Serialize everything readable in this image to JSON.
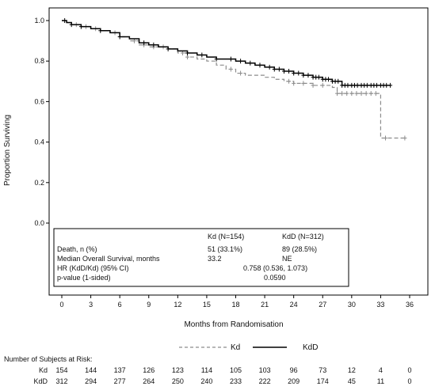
{
  "chart_data": {
    "type": "line",
    "y_axis_label": "Proportion Surviving",
    "x_axis_label": "Months from Randomisation",
    "xlim": [
      -1,
      37
    ],
    "ylim": [
      -0.38,
      1.05
    ],
    "x_ticks": [
      0,
      3,
      6,
      9,
      12,
      15,
      18,
      21,
      24,
      27,
      30,
      33,
      36
    ],
    "y_ticks": [
      0.0,
      0.2,
      0.4,
      0.6,
      0.8,
      1.0
    ],
    "y_tick_labels": [
      "0.0",
      "0.2",
      "0.4",
      "0.6",
      "0.8",
      "1.0"
    ],
    "grid": false,
    "series": [
      {
        "name": "Kd",
        "style": "dashed",
        "color": "#8c8c8c",
        "points": [
          [
            0,
            1.0
          ],
          [
            0.5,
            0.99
          ],
          [
            1,
            0.98
          ],
          [
            2,
            0.97
          ],
          [
            3,
            0.96
          ],
          [
            4,
            0.95
          ],
          [
            5,
            0.94
          ],
          [
            6,
            0.92
          ],
          [
            7,
            0.9
          ],
          [
            8,
            0.88
          ],
          [
            9,
            0.87
          ],
          [
            10,
            0.87
          ],
          [
            11,
            0.86
          ],
          [
            12,
            0.84
          ],
          [
            13,
            0.82
          ],
          [
            14,
            0.81
          ],
          [
            15,
            0.8
          ],
          [
            16,
            0.78
          ],
          [
            17,
            0.76
          ],
          [
            18,
            0.74
          ],
          [
            19,
            0.73
          ],
          [
            20,
            0.73
          ],
          [
            21,
            0.72
          ],
          [
            22,
            0.71
          ],
          [
            23,
            0.7
          ],
          [
            24,
            0.69
          ],
          [
            25,
            0.69
          ],
          [
            26,
            0.68
          ],
          [
            27,
            0.68
          ],
          [
            28,
            0.67
          ],
          [
            28.5,
            0.64
          ],
          [
            29,
            0.64
          ],
          [
            30,
            0.64
          ],
          [
            31,
            0.64
          ],
          [
            32,
            0.64
          ],
          [
            33,
            0.64
          ],
          [
            33,
            0.42
          ],
          [
            35.5,
            0.42
          ]
        ],
        "censor_x": [
          1.5,
          2.5,
          3.5,
          5.5,
          7.5,
          8.5,
          9.5,
          10.5,
          12.5,
          13,
          17.5,
          18.5,
          23.5,
          24,
          25,
          26,
          27,
          28.5,
          29,
          29.5,
          30,
          30.5,
          31,
          31.5,
          32,
          32.5,
          33.5,
          35.5
        ]
      },
      {
        "name": "KdD",
        "style": "solid",
        "color": "#000000",
        "points": [
          [
            0,
            1.0
          ],
          [
            0.5,
            0.99
          ],
          [
            1,
            0.98
          ],
          [
            2,
            0.97
          ],
          [
            3,
            0.96
          ],
          [
            4,
            0.95
          ],
          [
            5,
            0.94
          ],
          [
            6,
            0.92
          ],
          [
            7,
            0.91
          ],
          [
            8,
            0.89
          ],
          [
            9,
            0.88
          ],
          [
            10,
            0.87
          ],
          [
            11,
            0.86
          ],
          [
            12,
            0.85
          ],
          [
            13,
            0.84
          ],
          [
            14,
            0.83
          ],
          [
            15,
            0.82
          ],
          [
            16,
            0.81
          ],
          [
            17,
            0.81
          ],
          [
            18,
            0.8
          ],
          [
            19,
            0.79
          ],
          [
            20,
            0.78
          ],
          [
            21,
            0.77
          ],
          [
            22,
            0.76
          ],
          [
            23,
            0.75
          ],
          [
            24,
            0.74
          ],
          [
            25,
            0.73
          ],
          [
            26,
            0.72
          ],
          [
            27,
            0.71
          ],
          [
            28,
            0.7
          ],
          [
            29,
            0.68
          ],
          [
            30,
            0.68
          ],
          [
            31,
            0.68
          ],
          [
            32,
            0.68
          ],
          [
            33,
            0.68
          ],
          [
            34,
            0.68
          ]
        ],
        "censor_x": [
          0.3,
          1,
          2,
          4,
          6,
          8.5,
          9.5,
          11,
          13,
          14.5,
          16,
          17.5,
          18.5,
          19.5,
          20.5,
          21.5,
          22,
          22.5,
          23,
          23.5,
          24,
          24.5,
          25,
          25.5,
          26,
          26.3,
          26.6,
          27,
          27.3,
          27.6,
          28,
          28.3,
          28.6,
          29,
          29.3,
          29.6,
          30,
          30.3,
          30.6,
          31,
          31.3,
          31.6,
          32,
          32.3,
          32.6,
          33,
          33.3,
          33.6,
          34
        ]
      }
    ],
    "summary_table": {
      "col_headers": [
        "Kd (N=154)",
        "KdD (N=312)"
      ],
      "rows": [
        {
          "label": "Death, n (%)",
          "kd": "51 (33.1%)",
          "kdd": "89 (28.5%)"
        },
        {
          "label": "Median Overall Survival, months",
          "kd": "33.2",
          "kdd": "NE"
        },
        {
          "label": "HR (KdD/Kd) (95% CI)",
          "combined": "0.758 (0.536, 1.073)"
        },
        {
          "label": "p-value (1-sided)",
          "combined": "0.0590"
        }
      ]
    },
    "legend": {
      "placement": "bottom-center",
      "entries": [
        {
          "name": "Kd",
          "style": "dashed"
        },
        {
          "name": "KdD",
          "style": "solid"
        }
      ]
    },
    "risk_table": {
      "title": "Number of Subjects at Risk:",
      "rows": [
        {
          "label": "Kd",
          "values": [
            154,
            144,
            137,
            126,
            123,
            114,
            105,
            103,
            96,
            73,
            12,
            4,
            0
          ]
        },
        {
          "label": "KdD",
          "values": [
            312,
            294,
            277,
            264,
            250,
            240,
            233,
            222,
            209,
            174,
            45,
            11,
            0
          ]
        }
      ]
    }
  }
}
